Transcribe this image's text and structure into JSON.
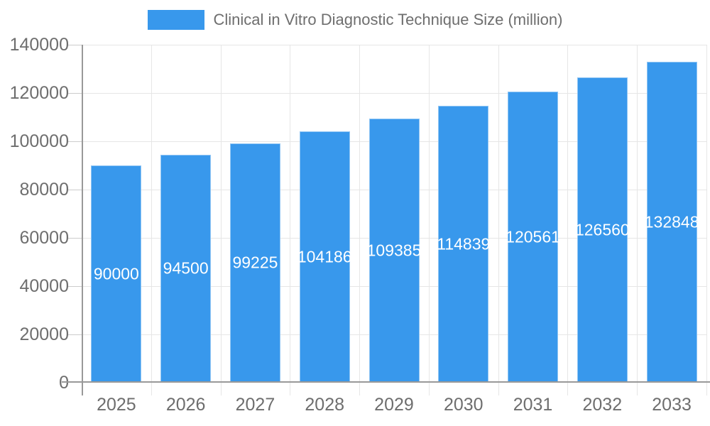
{
  "legend": {
    "title": "Clinical in Vitro Diagnostic Technique Size (million)"
  },
  "chart_data": {
    "type": "bar",
    "title": "Clinical in Vitro Diagnostic Technique Size (million)",
    "categories": [
      "2025",
      "2026",
      "2027",
      "2028",
      "2029",
      "2030",
      "2031",
      "2032",
      "2033"
    ],
    "values": [
      90000,
      94500,
      99225,
      104186,
      109385,
      114839,
      120561,
      126560,
      132848
    ],
    "data_labels": [
      "90000",
      "94500",
      "99225",
      "104186",
      "109385",
      "114839",
      "120561",
      "126560",
      "132848"
    ],
    "yticks": [
      0,
      20000,
      40000,
      60000,
      80000,
      100000,
      120000,
      140000
    ],
    "ylim": [
      0,
      140000
    ],
    "xlabel": "",
    "ylabel": "",
    "grid": true,
    "legend_position": "top",
    "bar_color": "#3898ec",
    "data_label_color": "#ffffff",
    "grid_color": "#e6e6e6",
    "axis_color": "#999999",
    "label_color": "#6e6e6e",
    "background_color": "#ffffff"
  }
}
